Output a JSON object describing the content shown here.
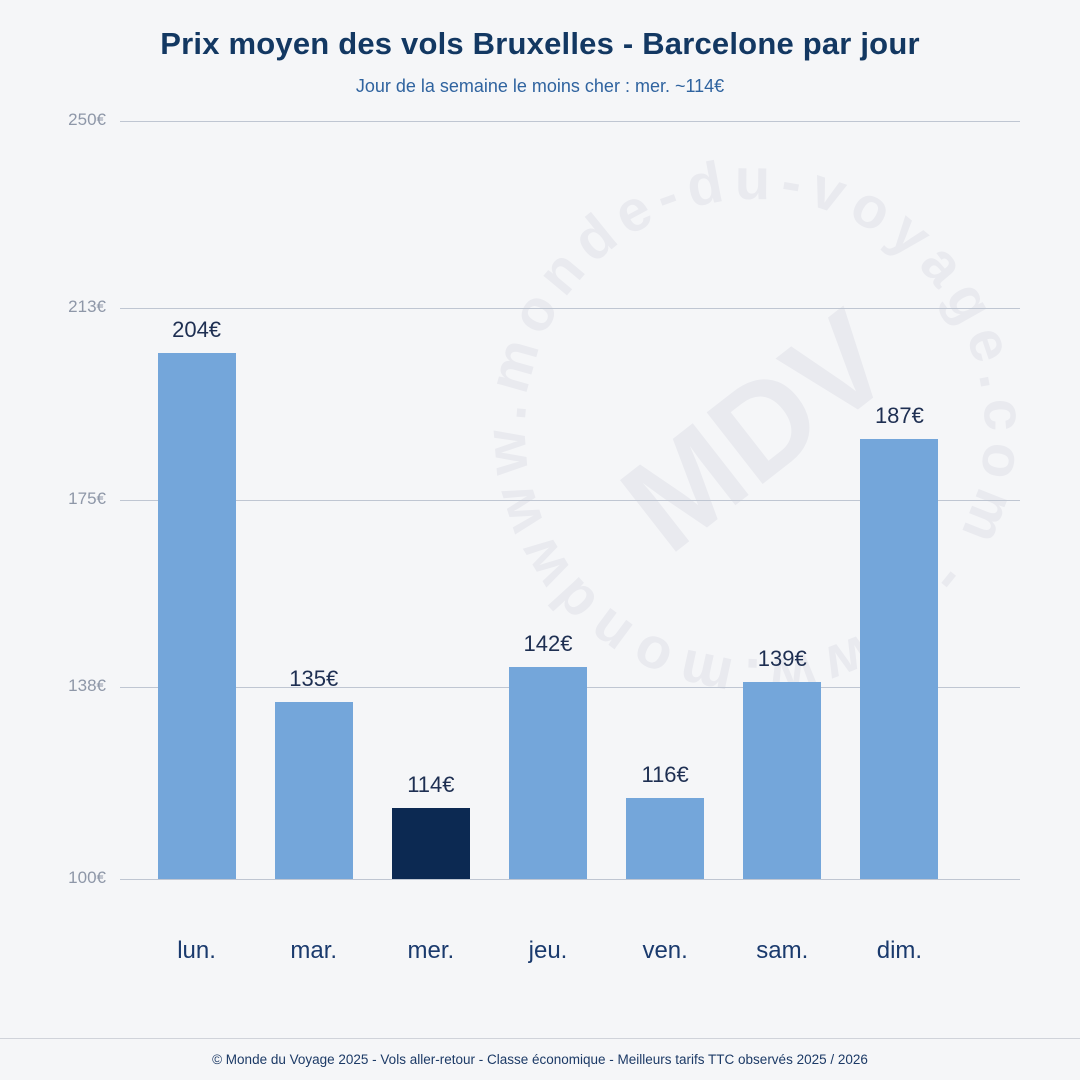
{
  "title": "Prix moyen des vols Bruxelles - Barcelone par jour",
  "subtitle": "Jour de la semaine le moins cher : mer. ~114€",
  "footer": "© Monde du Voyage 2025 - Vols aller-retour - Classe économique - Meilleurs tarifs TTC observés 2025 / 2026",
  "watermark": {
    "ring_text": "www.monde-du-voyage.com - www.monde-du-voyage.com -",
    "center_text": "MDV"
  },
  "colors": {
    "background": "#f5f6f8",
    "bar": "#74a6da",
    "bar_highlight": "#0c2952",
    "title": "#133862",
    "subtitle": "#2f639f",
    "gridline": "#bfc6d2",
    "y_tick": "#8e97a8",
    "value_label": "#1e2f52",
    "x_label": "#1a3a6d",
    "footer": "#1c3a66",
    "watermark": "#e9eaef"
  },
  "chart_data": {
    "type": "bar",
    "title": "Prix moyen des vols Bruxelles - Barcelone par jour",
    "subtitle": "Jour de la semaine le moins cher : mer. ~114€",
    "categories": [
      "lun.",
      "mar.",
      "mer.",
      "jeu.",
      "ven.",
      "sam.",
      "dim."
    ],
    "values": [
      204,
      135,
      114,
      142,
      116,
      139,
      187
    ],
    "value_labels": [
      "204€",
      "135€",
      "114€",
      "142€",
      "116€",
      "139€",
      "187€"
    ],
    "highlight_index": 2,
    "highlight_meaning": "cheapest day (mer.)",
    "ylim": [
      100,
      250
    ],
    "y_ticks": [
      250,
      213,
      175,
      138,
      100
    ],
    "y_tick_labels": [
      "250€",
      "213€",
      "175€",
      "138€",
      "100€"
    ],
    "xlabel": "",
    "ylabel": "",
    "grid": true,
    "legend": false
  }
}
